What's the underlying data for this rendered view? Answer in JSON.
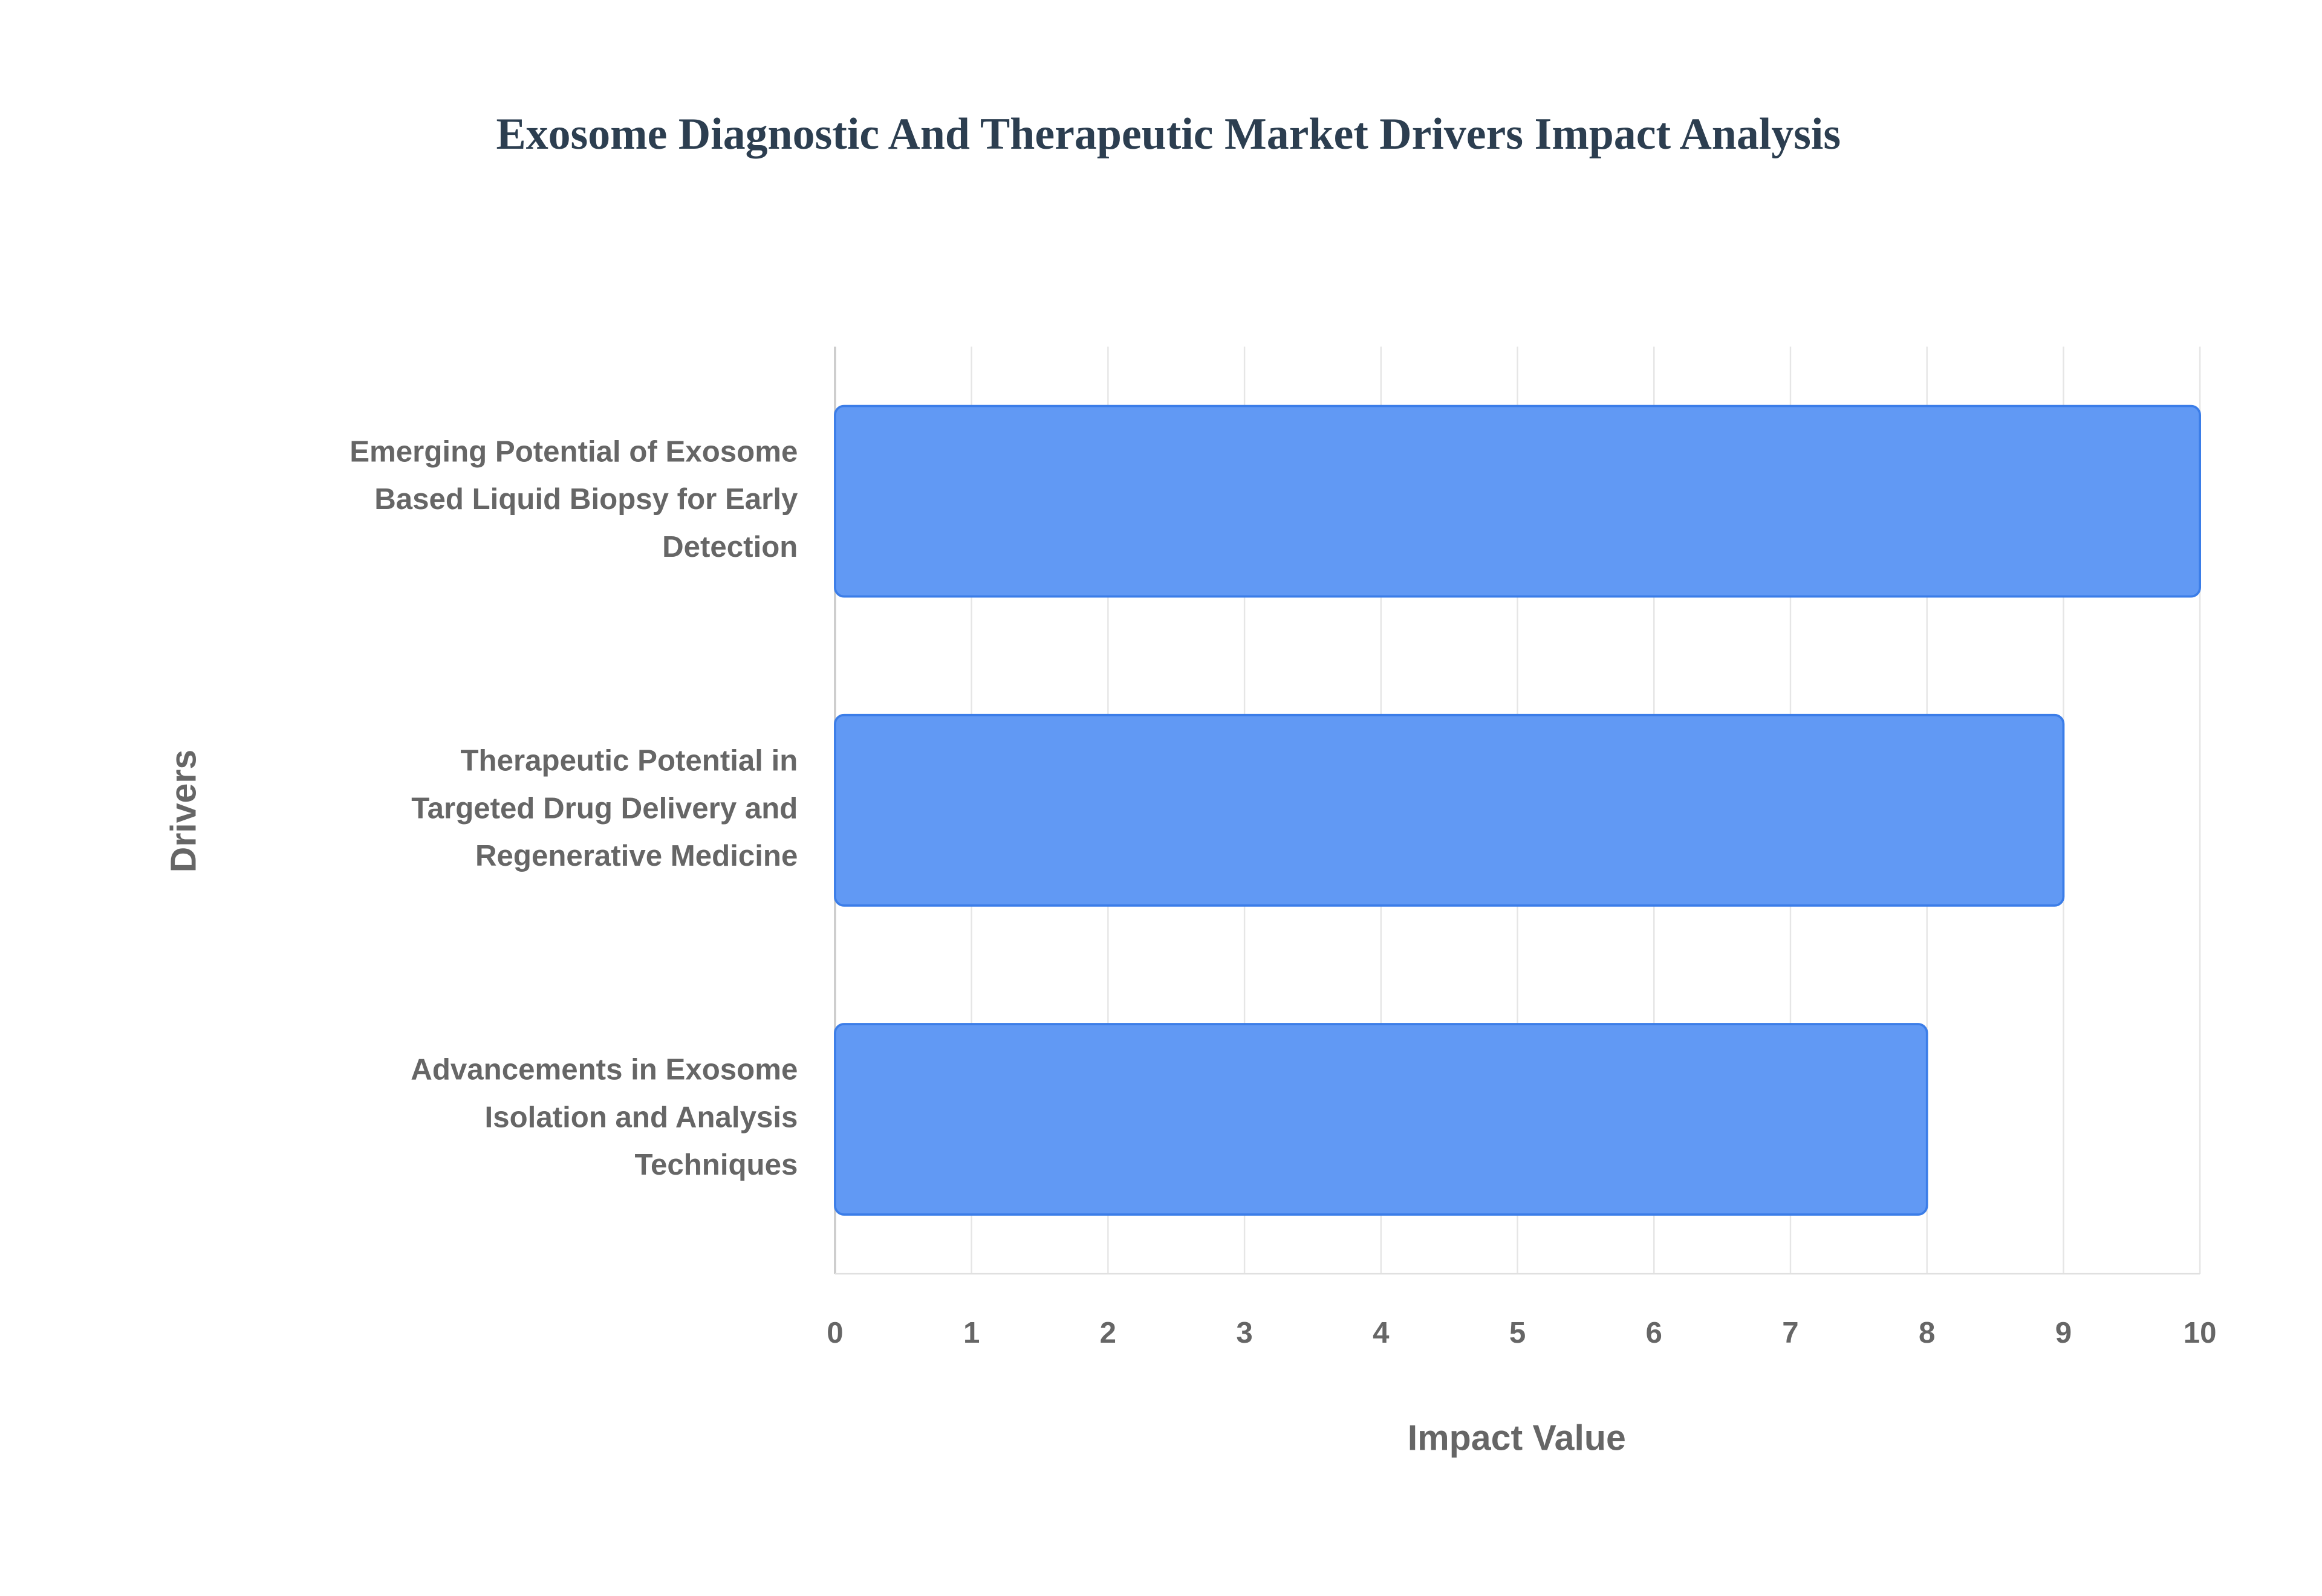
{
  "chart_data": {
    "type": "bar",
    "orientation": "horizontal",
    "title": "Exosome Diagnostic And Therapeutic Market Drivers Impact Analysis",
    "x_label": "Impact Value",
    "y_label": "Drivers",
    "categories": [
      "Emerging Potential of Exosome Based Liquid Biopsy for Early Detection",
      "Therapeutic Potential in Targeted Drug Delivery and Regenerative Medicine",
      "Advancements in Exosome Isolation and Analysis Techniques"
    ],
    "values": [
      10,
      9,
      8
    ],
    "color": "#6199f4",
    "xlim": [
      0,
      10
    ],
    "xticks": [
      0,
      1,
      2,
      3,
      4,
      5,
      6,
      7,
      8,
      9,
      10
    ],
    "grid": true
  }
}
